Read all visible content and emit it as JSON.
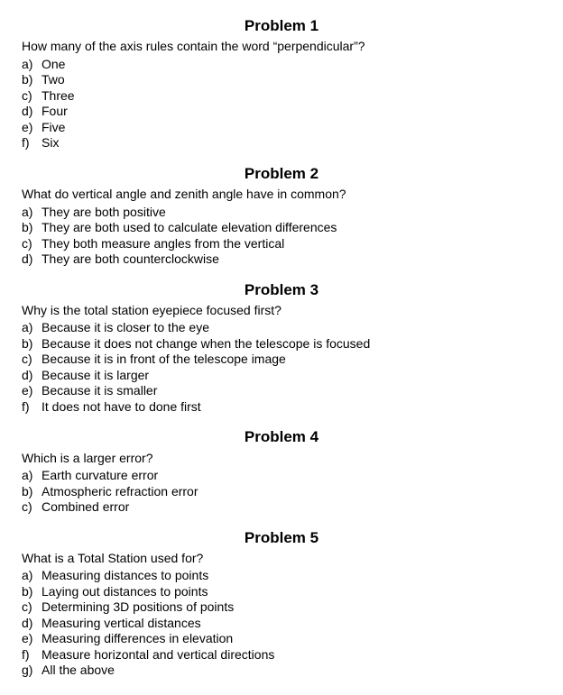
{
  "problems": [
    {
      "title": "Problem 1",
      "question": "How many of the axis rules contain the word “perpendicular”?",
      "options": [
        {
          "letter": "a)",
          "text": "One"
        },
        {
          "letter": "b)",
          "text": "Two"
        },
        {
          "letter": "c)",
          "text": "Three"
        },
        {
          "letter": "d)",
          "text": "Four"
        },
        {
          "letter": "e)",
          "text": "Five"
        },
        {
          "letter": "f)",
          "text": "Six"
        }
      ]
    },
    {
      "title": "Problem 2",
      "question": "What do vertical angle and zenith angle have in common?",
      "options": [
        {
          "letter": "a)",
          "text": "They are both positive"
        },
        {
          "letter": "b)",
          "text": "They are both used to calculate elevation differences"
        },
        {
          "letter": "c)",
          "text": "They both measure angles from the vertical"
        },
        {
          "letter": "d)",
          "text": "They are both counterclockwise"
        }
      ]
    },
    {
      "title": "Problem 3",
      "question": "Why is the total station eyepiece focused first?",
      "options": [
        {
          "letter": "a)",
          "text": "Because it is closer to the eye"
        },
        {
          "letter": "b)",
          "text": "Because it does not change when the telescope is focused"
        },
        {
          "letter": "c)",
          "text": "Because it is in front of the telescope image"
        },
        {
          "letter": "d)",
          "text": "Because it is larger"
        },
        {
          "letter": "e)",
          "text": "Because it is smaller"
        },
        {
          "letter": "f)",
          "text": "It does not have to done first"
        }
      ]
    },
    {
      "title": "Problem 4",
      "question": "Which is a larger error?",
      "options": [
        {
          "letter": "a)",
          "text": "Earth curvature error"
        },
        {
          "letter": "b)",
          "text": "Atmospheric refraction error"
        },
        {
          "letter": "c)",
          "text": "Combined error"
        }
      ]
    },
    {
      "title": "Problem 5",
      "question": "What is a Total Station used for?",
      "options": [
        {
          "letter": "a)",
          "text": "Measuring distances to points"
        },
        {
          "letter": "b)",
          "text": "Laying out distances to points"
        },
        {
          "letter": "c)",
          "text": "Determining 3D positions of points"
        },
        {
          "letter": "d)",
          "text": "Measuring vertical distances"
        },
        {
          "letter": "e)",
          "text": "Measuring differences in elevation"
        },
        {
          "letter": "f)",
          "text": "Measure horizontal and vertical directions"
        },
        {
          "letter": "g)",
          "text": "All the above"
        }
      ]
    }
  ],
  "styles": {
    "background_color": "#ffffff",
    "text_color": "#000000",
    "font_family": "Arial",
    "body_fontsize": 14,
    "title_fontsize": 17,
    "title_fontweight": "bold",
    "line_height": 1.25
  }
}
